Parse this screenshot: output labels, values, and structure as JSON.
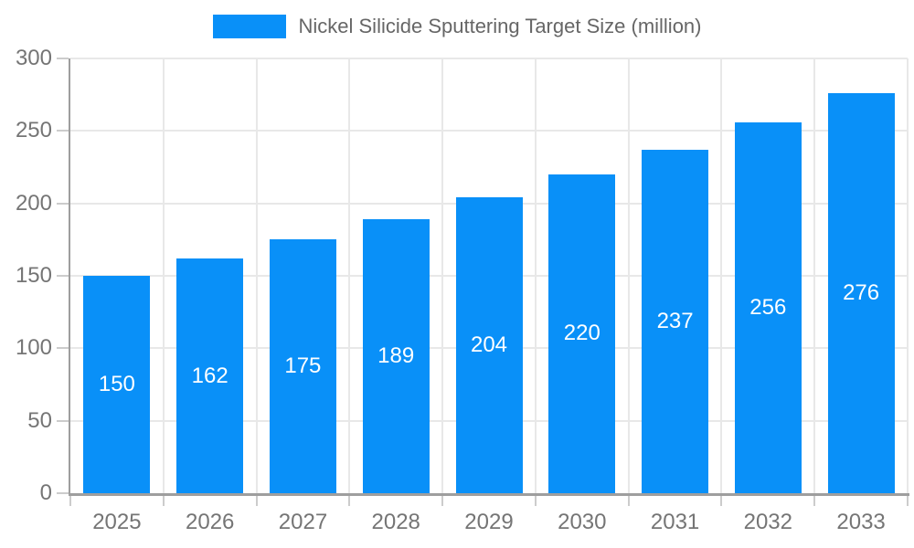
{
  "legend": {
    "label": "Nickel Silicide Sputtering Target Size (million)",
    "swatch_color": "#0990f8"
  },
  "chart_data": {
    "type": "bar",
    "title": "Nickel Silicide Sputtering Target Size (million)",
    "categories": [
      "2025",
      "2026",
      "2027",
      "2028",
      "2029",
      "2030",
      "2031",
      "2032",
      "2033"
    ],
    "values": [
      150,
      162,
      175,
      189,
      204,
      220,
      237,
      256,
      276
    ],
    "xlabel": "",
    "ylabel": "",
    "ylim": [
      0,
      300
    ],
    "yticks": [
      0,
      50,
      100,
      150,
      200,
      250,
      300
    ],
    "grid": true,
    "legend_position": "top-center",
    "bar_color": "#0990f8",
    "value_label_color": "#ffffff",
    "tick_label_color": "#757575",
    "grid_color": "#e8e8e8",
    "axis_color": "#9e9e9e"
  }
}
